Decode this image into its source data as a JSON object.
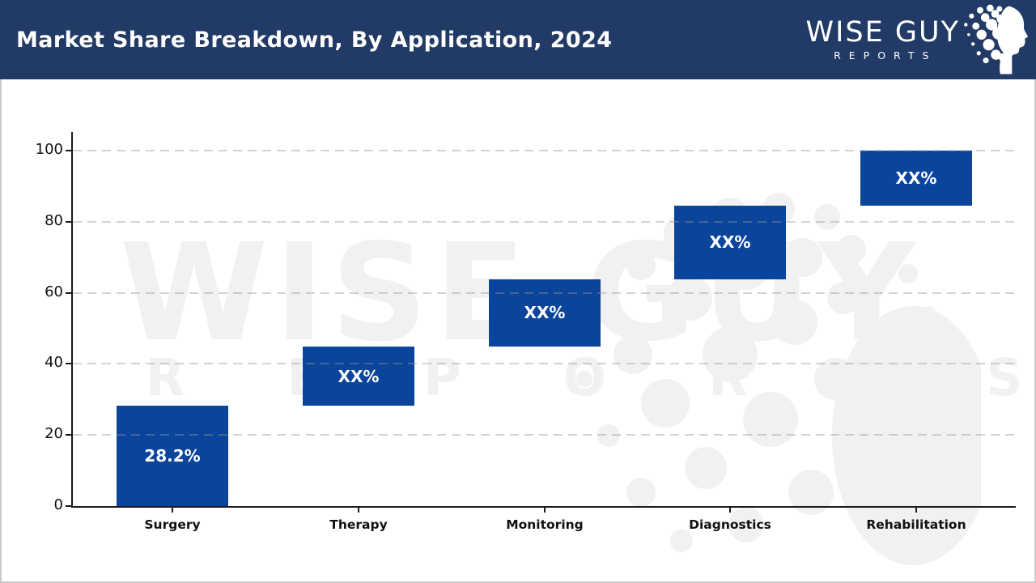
{
  "header": {
    "title": "Market Share Breakdown, By Application, 2024",
    "logo": {
      "line1": "WISE GUY",
      "line2": "REPORTS"
    }
  },
  "watermark": {
    "line1": "WISE GUY",
    "line2": "R E P O R T S"
  },
  "colors": {
    "header_bg": "#213a66",
    "bar_blue": "#0a449b",
    "bar_label_text": "#ffffff",
    "axis": "#1a1a1a",
    "watermark_grey": "#f1f1f2"
  },
  "chart_data": {
    "type": "bar",
    "subtype": "floating-waterfall",
    "title": "Market Share Breakdown, By Application, 2024",
    "categories": [
      "Surgery",
      "Therapy",
      "Monitoring",
      "Diagnostics",
      "Rehabilitation"
    ],
    "segments": [
      {
        "category": "Surgery",
        "start": 0,
        "end": 28.2,
        "label": "28.2%"
      },
      {
        "category": "Therapy",
        "start": 28.2,
        "end": 44.9,
        "label": "XX%"
      },
      {
        "category": "Monitoring",
        "start": 44.9,
        "end": 63.8,
        "label": "XX%"
      },
      {
        "category": "Diagnostics",
        "start": 63.8,
        "end": 84.5,
        "label": "XX%"
      },
      {
        "category": "Rehabilitation",
        "start": 84.5,
        "end": 100,
        "label": "XX%"
      }
    ],
    "yticks": [
      0,
      20,
      40,
      60,
      80,
      100
    ],
    "ylim": [
      0,
      105
    ],
    "xlabel": "",
    "ylabel": "",
    "grid": true,
    "grid_style": "dashed",
    "legend": false,
    "bar_color": "#0a449b",
    "label_color": "#ffffff"
  }
}
